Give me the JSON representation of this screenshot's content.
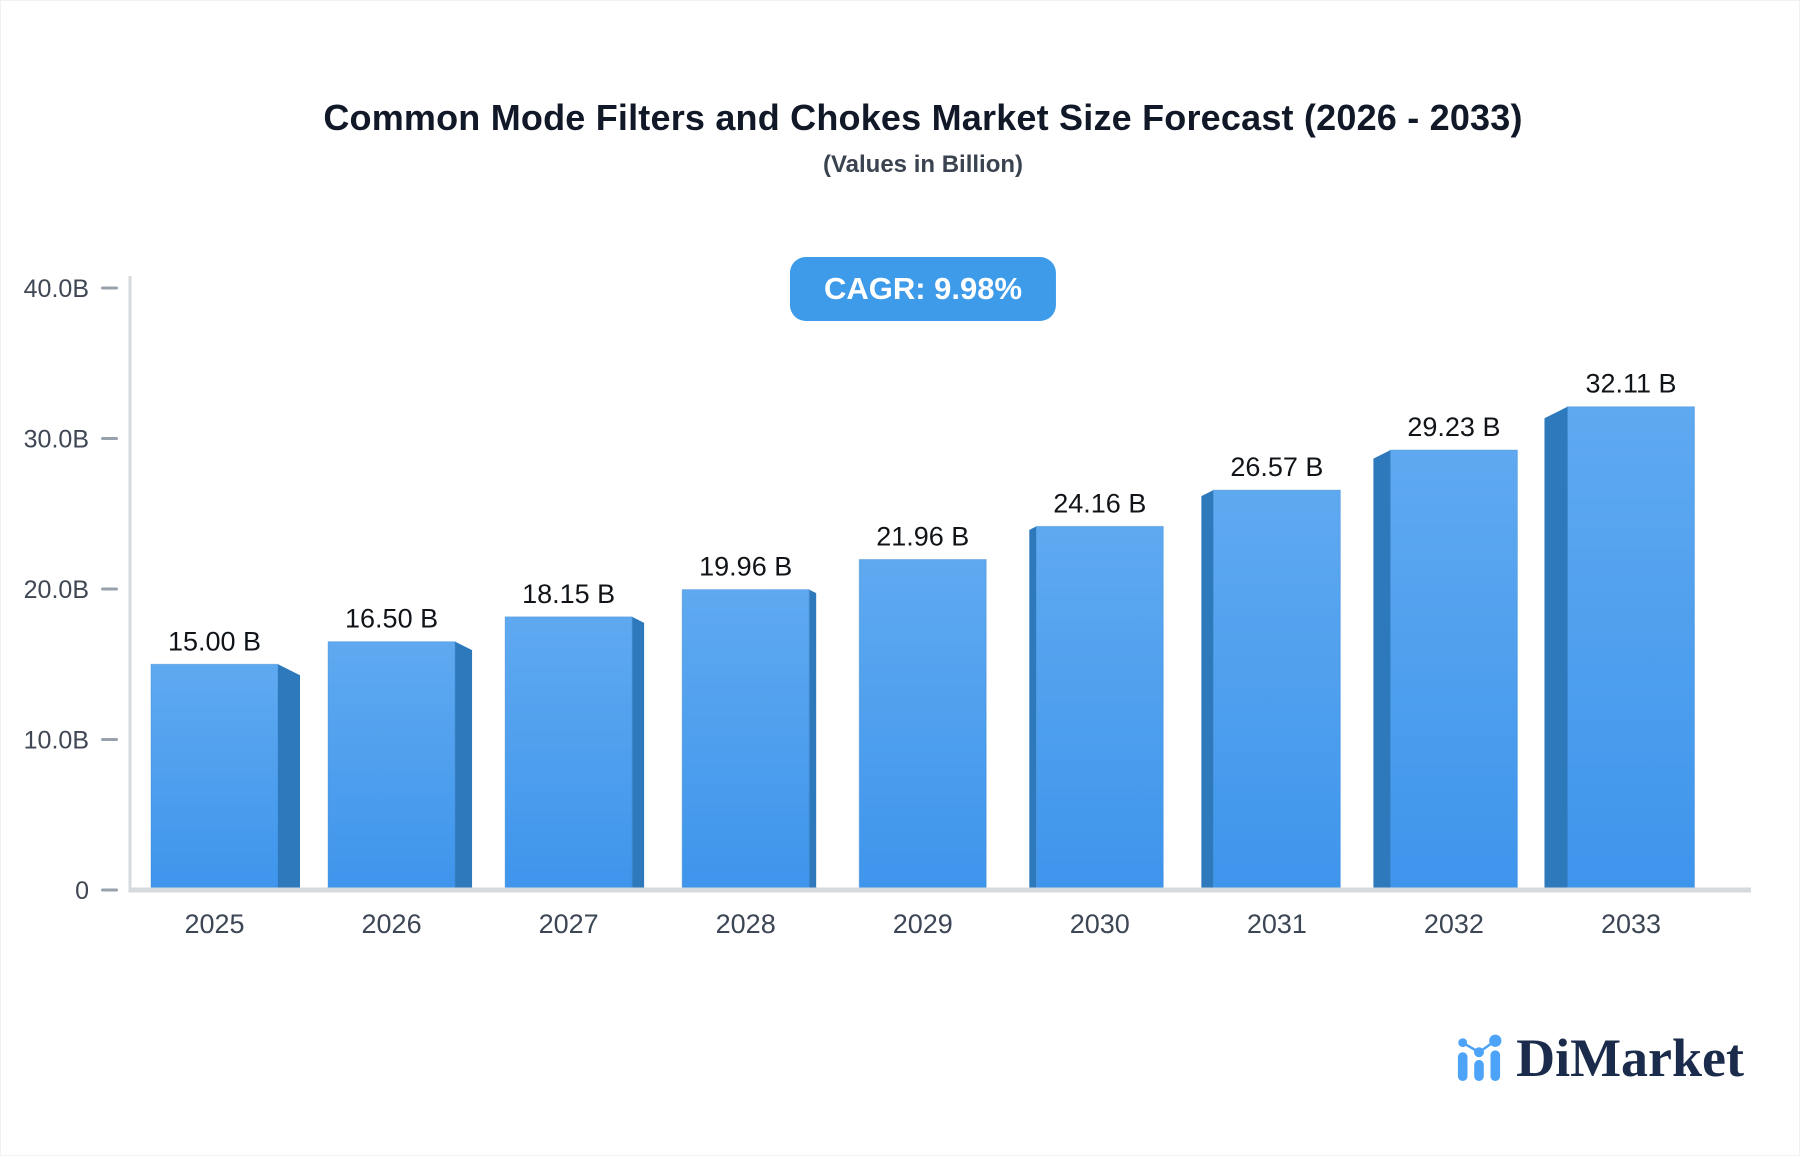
{
  "header": {
    "title": "Common Mode Filters and Chokes Market Size Forecast (2026 - 2033)",
    "subtitle": "(Values in Billion)",
    "cagr_badge": "CAGR: 9.98%"
  },
  "chart_data": {
    "type": "bar",
    "title": "Common Mode Filters and Chokes Market Size Forecast (2026 - 2033)",
    "subtitle": "(Values in Billion)",
    "cagr": "CAGR: 9.98%",
    "categories": [
      "2025",
      "2026",
      "2027",
      "2028",
      "2029",
      "2030",
      "2031",
      "2032",
      "2033"
    ],
    "values": [
      15.0,
      16.5,
      18.15,
      19.96,
      21.96,
      24.16,
      26.57,
      29.23,
      32.11
    ],
    "value_labels": [
      "15.00 B",
      "16.50 B",
      "18.15 B",
      "19.96 B",
      "21.96 B",
      "24.16 B",
      "26.57 B",
      "29.23 B",
      "32.11 B"
    ],
    "xlabel": "",
    "ylabel": "",
    "ylim": [
      0,
      40
    ],
    "yticks": [
      0,
      10,
      20,
      30,
      40
    ],
    "ytick_labels": [
      "0",
      "10.0B",
      "20.0B",
      "30.0B",
      "40.0B"
    ],
    "grid": false,
    "legend": false,
    "bar_style": "3d-perspective-center",
    "colors": {
      "bar_face_top": "#5FA9F0",
      "bar_face_bottom": "#3E95EC",
      "bar_face_edge": "#2E7FC8",
      "bar_side": "#2E78BC",
      "badge_bg": "#3D9BEA",
      "badge_text": "#FFFFFF",
      "axis_line": "#D6D9DD",
      "tick_mark": "#98A2AD",
      "ytick_text": "#3F4754",
      "xtick_text": "#3D4654",
      "value_text": "#101418",
      "title_text": "#111827",
      "subtitle_text": "#3A4350"
    }
  },
  "logo": {
    "text": "DiMarket",
    "icon": "mini-bar-chart-icon",
    "icon_color": "#4DA3F7",
    "text_color": "#1B2B4B"
  }
}
